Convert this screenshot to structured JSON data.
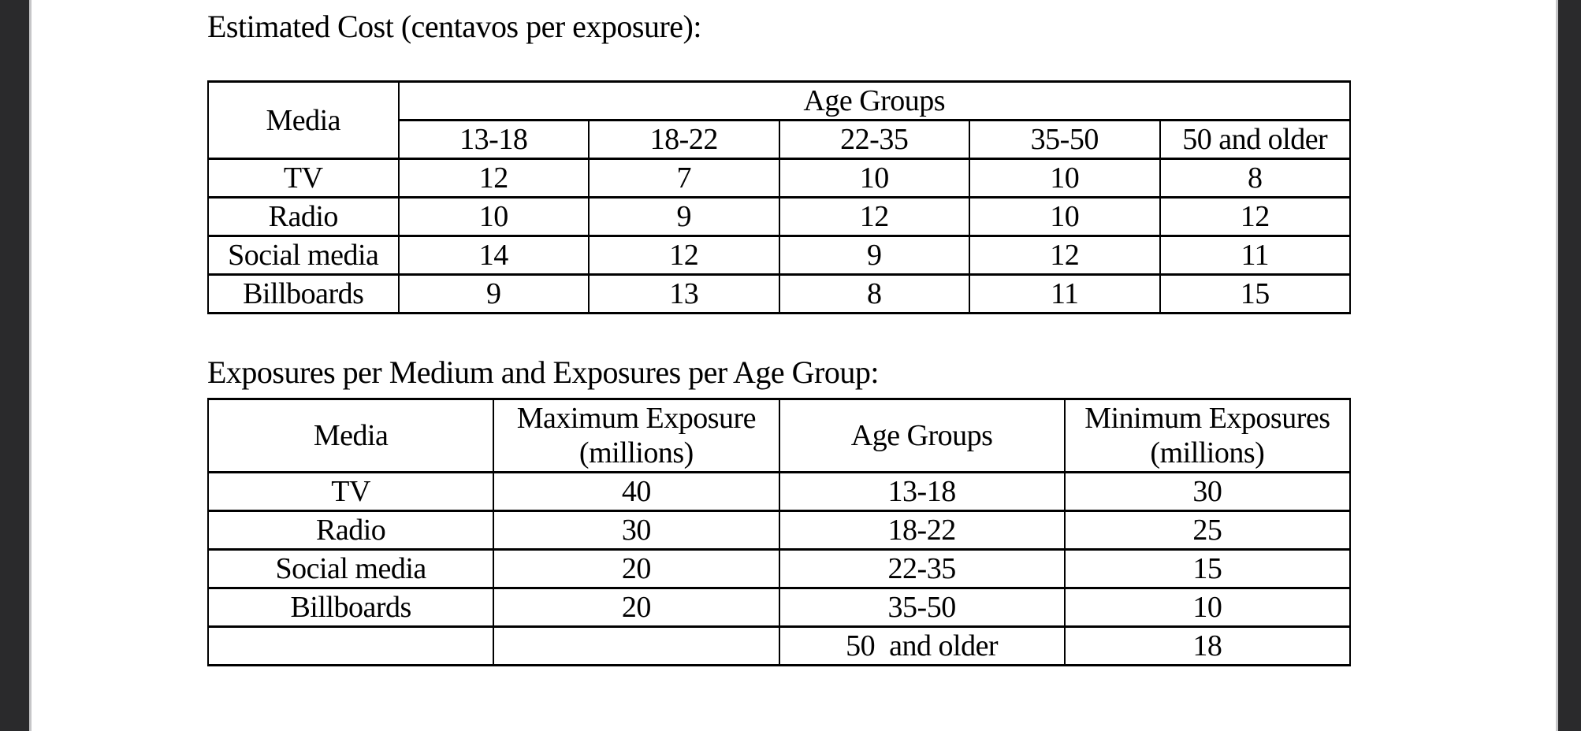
{
  "page": {
    "background_color": "#ffffff",
    "edge_bar_color": "#2a2a2c",
    "edge_divider_color": "#c6c6c8"
  },
  "section1": {
    "title": "Estimated Cost (centavos per exposure):",
    "table": {
      "corner_header": "Media",
      "group_header": "Age Groups",
      "age_columns": [
        "13-18",
        "18-22",
        "22-35",
        "35-50",
        "50 and older"
      ],
      "rows": [
        {
          "media": "TV",
          "values": [
            12,
            7,
            10,
            10,
            8
          ]
        },
        {
          "media": "Radio",
          "values": [
            10,
            9,
            12,
            10,
            12
          ]
        },
        {
          "media": "Social media",
          "values": [
            14,
            12,
            9,
            12,
            11
          ]
        },
        {
          "media": "Billboards",
          "values": [
            9,
            13,
            8,
            11,
            15
          ]
        }
      ]
    }
  },
  "section2": {
    "title": "Exposures per Medium and Exposures per Age Group:",
    "table": {
      "headers": [
        "Media",
        "Maximum Exposure\n(millions)",
        "Age Groups",
        "Minimum Exposures\n(millions)"
      ],
      "rows": [
        {
          "media": "TV",
          "max_exposure": "40",
          "age_group": "13-18",
          "min_exposure": "30"
        },
        {
          "media": "Radio",
          "max_exposure": "30",
          "age_group": "18-22",
          "min_exposure": "25"
        },
        {
          "media": "Social media",
          "max_exposure": "20",
          "age_group": "22-35",
          "min_exposure": "15"
        },
        {
          "media": "Billboards",
          "max_exposure": "20",
          "age_group": "35-50",
          "min_exposure": "10"
        },
        {
          "media": "",
          "max_exposure": "",
          "age_group": "50  and older",
          "min_exposure": "18"
        }
      ]
    }
  }
}
